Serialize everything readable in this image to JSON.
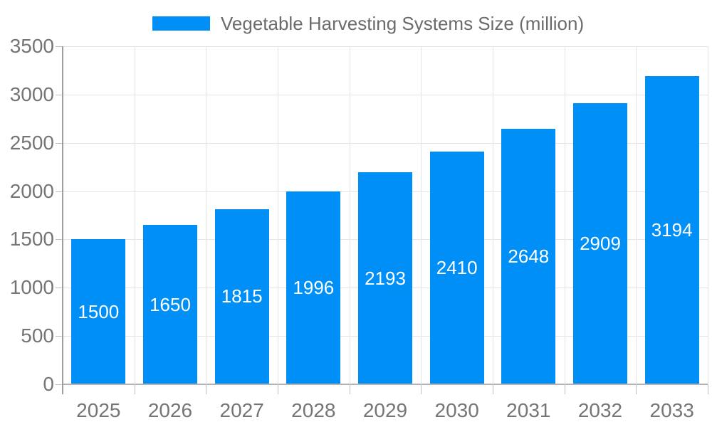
{
  "legend": {
    "items": [
      {
        "label": "Vegetable Harvesting Systems Size (million)",
        "color": "#008FF7"
      }
    ]
  },
  "chart_data": {
    "type": "bar",
    "title": "Vegetable Harvesting Systems Size (million)",
    "categories": [
      "2025",
      "2026",
      "2027",
      "2028",
      "2029",
      "2030",
      "2031",
      "2032",
      "2033"
    ],
    "series": [
      {
        "name": "Vegetable Harvesting Systems Size (million)",
        "values": [
          1500,
          1650,
          1815,
          1996,
          2193,
          2410,
          2648,
          2909,
          3194
        ],
        "color": "#008FF7"
      }
    ],
    "data_labels": {
      "visible": true,
      "position": "inside-center"
    },
    "xlabel": "",
    "ylabel": "",
    "ylim": [
      0,
      3500
    ],
    "yticks": [
      0,
      500,
      1000,
      1500,
      2000,
      2500,
      3000,
      3500
    ],
    "grid": true,
    "legend_position": "top-center",
    "colors": {
      "bar": "#008FF7",
      "axis_label": "#757575",
      "legend_text": "#6b6b6b",
      "data_label": "#ffffff",
      "gridline": "#e4e4e4",
      "axis_line": "#9e9e9e",
      "baseline": "#b3b3b3",
      "tick": "#bdbdbd",
      "background": "#ffffff"
    }
  }
}
